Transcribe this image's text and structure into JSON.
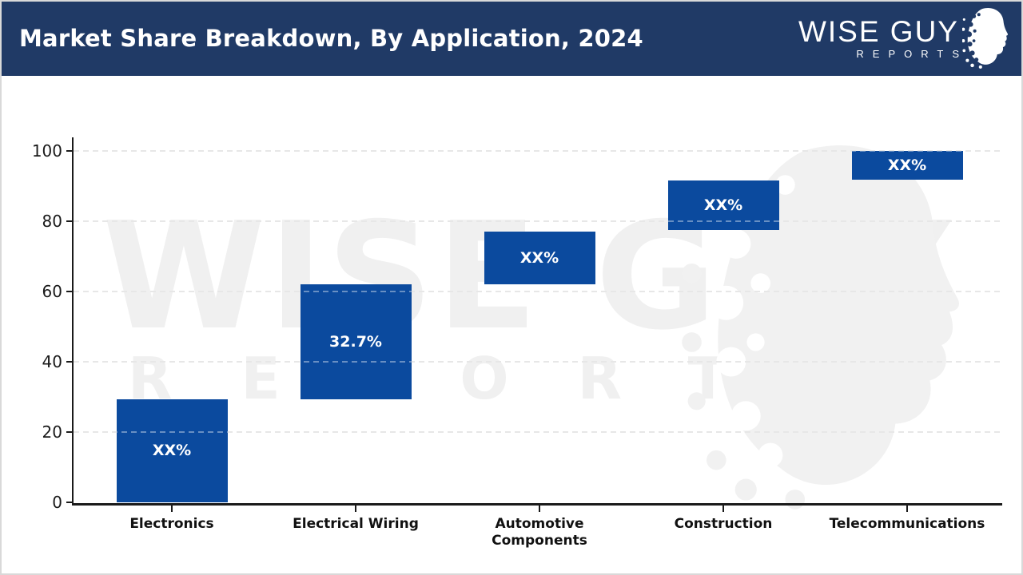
{
  "header": {
    "title": "Market Share Breakdown, By Application, 2024",
    "logo": {
      "line1": "WISE GUY",
      "line2": "REPORTS"
    }
  },
  "watermark": {
    "line1": "WISE GUY",
    "line2": "REPORTS"
  },
  "colors": {
    "header_bg": "#203A66",
    "bar": "#0B4A9E",
    "grid": "#D8D8D8",
    "axis": "#1A1A1A",
    "watermark": "#F0F0F0",
    "bar_label": "#FFFFFF",
    "title_text": "#FFFFFF"
  },
  "chart_data": {
    "type": "bar",
    "subtype": "floating-waterfall",
    "title": "Market Share Breakdown, By Application, 2024",
    "xlabel": "",
    "ylabel": "",
    "ylim": [
      0,
      104
    ],
    "yticks": [
      0,
      20,
      40,
      60,
      80,
      100
    ],
    "grid": "dashed-horizontal",
    "legend": "none",
    "categories": [
      "Electronics",
      "Electrical Wiring",
      "Automotive Components",
      "Construction",
      "Telecommunications"
    ],
    "segments": [
      {
        "category": "Electronics",
        "start": 0,
        "end": 29.4,
        "label": "XX%"
      },
      {
        "category": "Electrical Wiring",
        "start": 29.4,
        "end": 62.1,
        "label": "32.7%"
      },
      {
        "category": "Automotive Components",
        "start": 62.1,
        "end": 77.1,
        "label": "XX%"
      },
      {
        "category": "Construction",
        "start": 77.5,
        "end": 91.6,
        "label": "XX%"
      },
      {
        "category": "Telecommunications",
        "start": 91.9,
        "end": 100,
        "label": "XX%"
      }
    ]
  }
}
